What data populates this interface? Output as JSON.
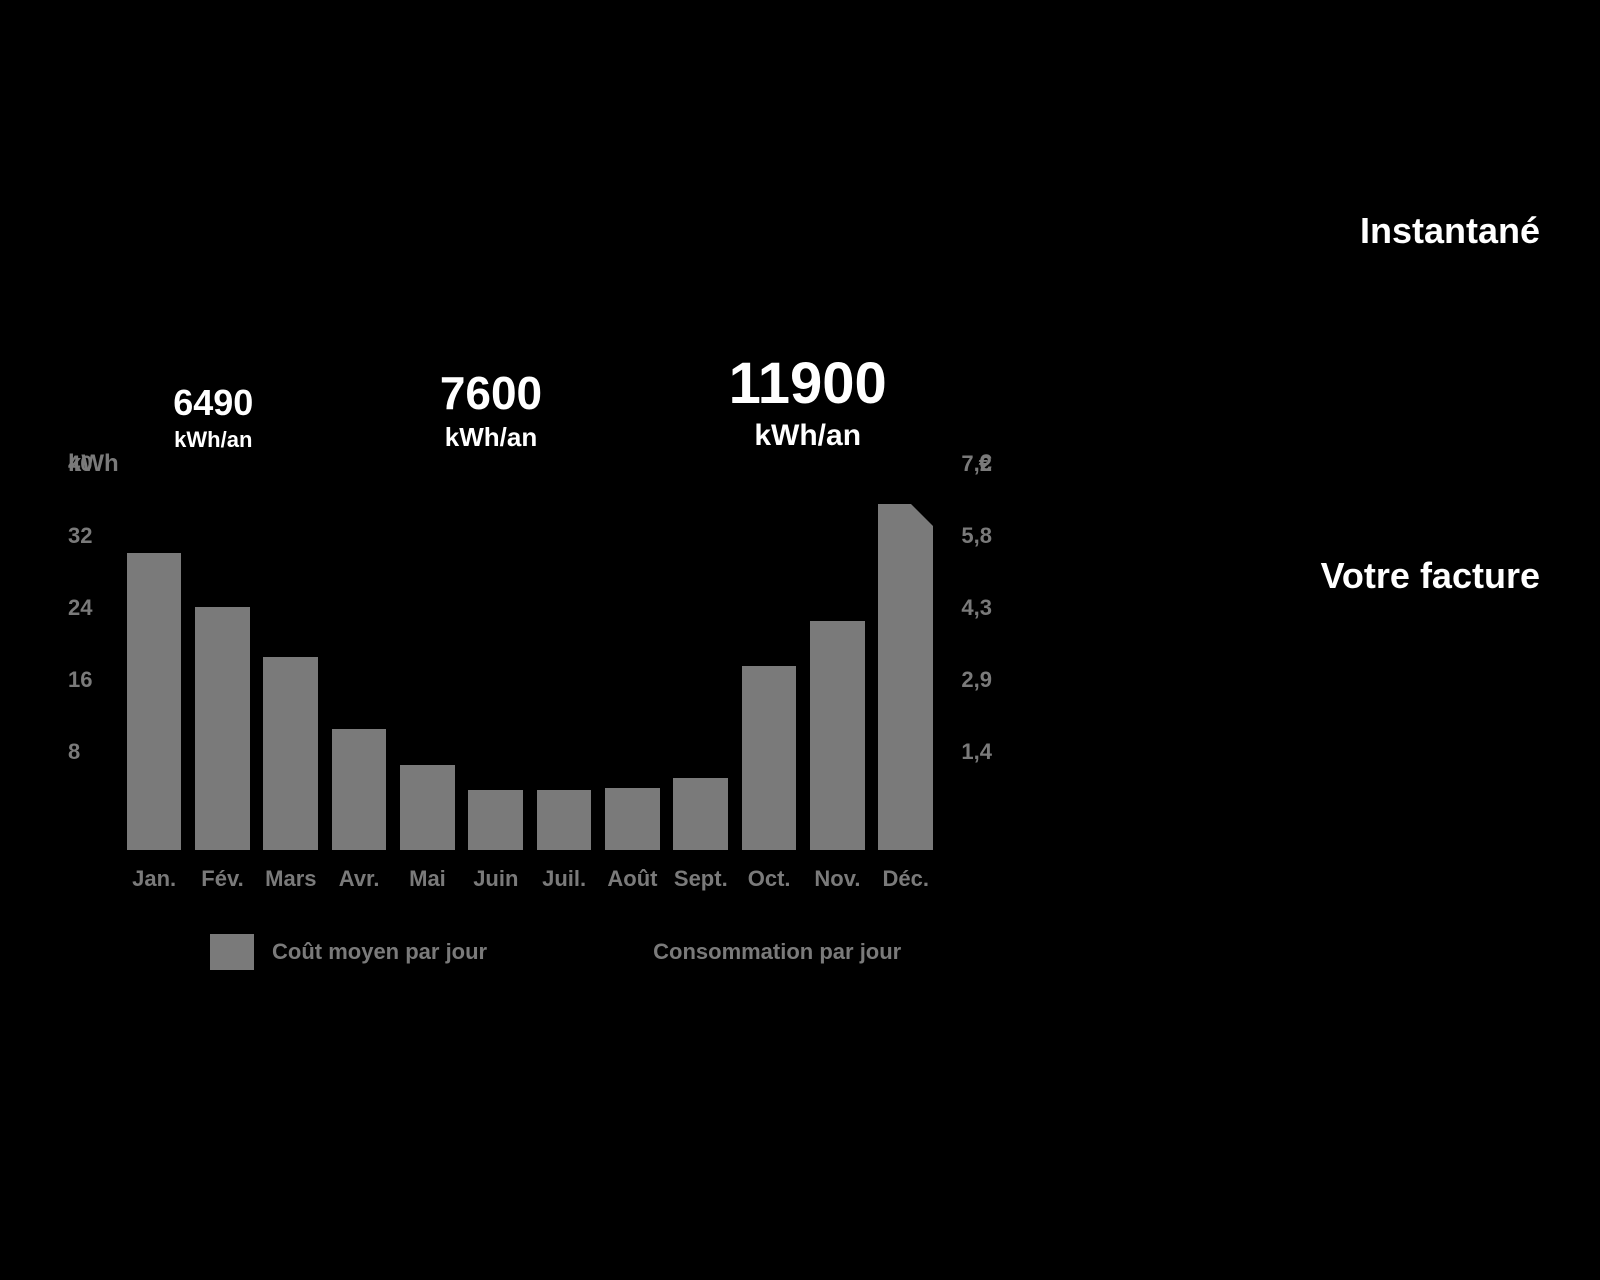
{
  "side_labels": {
    "top": "Instantané",
    "bottom": "Votre facture"
  },
  "consumption": {
    "items": [
      {
        "value": "6490",
        "unit": "kWh/an",
        "value_fontsize": 36,
        "unit_fontsize": 22
      },
      {
        "value": "7600",
        "unit": "kWh/an",
        "value_fontsize": 46,
        "unit_fontsize": 26
      },
      {
        "value": "11900",
        "unit": "kWh/an",
        "value_fontsize": 58,
        "unit_fontsize": 30
      }
    ]
  },
  "chart": {
    "type": "bar",
    "left_axis": {
      "title": "kWh",
      "ylim": [
        0,
        40
      ],
      "ticks": [
        8,
        16,
        24,
        32,
        40
      ]
    },
    "right_axis": {
      "title": "€",
      "ticks": [
        {
          "label": "1,4",
          "at_left_value": 8
        },
        {
          "label": "2,9",
          "at_left_value": 16
        },
        {
          "label": "4,3",
          "at_left_value": 24
        },
        {
          "label": "5,8",
          "at_left_value": 32
        },
        {
          "label": "7,2",
          "at_left_value": 40
        }
      ]
    },
    "categories": [
      "Jan.",
      "Fév.",
      "Mars",
      "Avr.",
      "Mai",
      "Juin",
      "Juil.",
      "Août",
      "Sept.",
      "Oct.",
      "Nov.",
      "Déc."
    ],
    "values": [
      33,
      27,
      21.5,
      13.5,
      9.5,
      6.7,
      6.7,
      6.9,
      8,
      20.5,
      25.5,
      38.5
    ],
    "bar_color": "#7a7a7a",
    "highlight_last_bar_notch": true,
    "bar_width_ratio": 0.8,
    "background_color": "#000000",
    "tick_color": "#7a7a7a",
    "tick_fontsize": 22,
    "axis_title_fontsize": 24,
    "legend": {
      "swatch_color": "#7a7a7a",
      "item1": "Coût moyen par jour",
      "item2": "Consommation par jour"
    }
  }
}
